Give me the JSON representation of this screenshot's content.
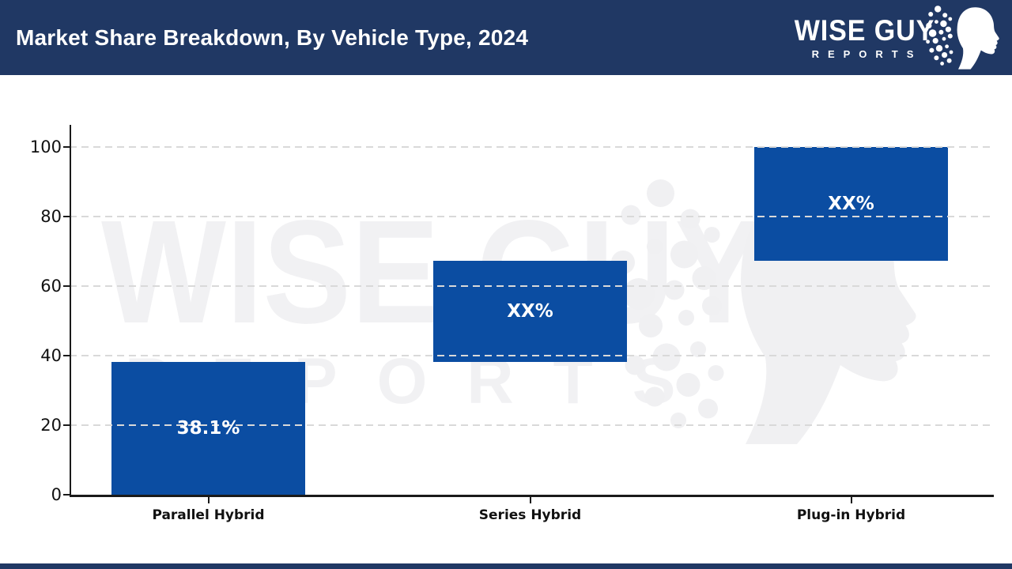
{
  "header": {
    "title": "Market Share Breakdown, By Vehicle Type, 2024",
    "logo": {
      "line1": "WISE GUY",
      "line2": "REPORTS"
    }
  },
  "watermark": {
    "line1": "WISE GUY",
    "line2": "REPORTS"
  },
  "chart_data": {
    "type": "bar",
    "subtype": "waterfall-cumulative",
    "title": "Market Share Breakdown, By Vehicle Type, 2024",
    "categories": [
      "Parallel Hybrid",
      "Series Hybrid",
      "Plug-in Hybrid"
    ],
    "segments": [
      {
        "category": "Parallel Hybrid",
        "start": 0,
        "end": 38.1,
        "label": "38.1%"
      },
      {
        "category": "Series Hybrid",
        "start": 38.1,
        "end": 67.3,
        "label": "XX%"
      },
      {
        "category": "Plug-in Hybrid",
        "start": 67.3,
        "end": 100,
        "label": "XX%"
      }
    ],
    "yticks": [
      0,
      20,
      40,
      60,
      80,
      100
    ],
    "ylim": [
      0,
      106
    ],
    "xlabel": "",
    "ylabel": "",
    "legend": "none",
    "grid": "horizontal-dashed"
  },
  "colors": {
    "header_bg": "#203864",
    "footer_bg": "#203864",
    "bar": "#0b4da2",
    "bar_label": "#ffffff",
    "watermark": "#f1f1f3",
    "gridline": "#d9d9d9",
    "axis": "#1a1a1a"
  }
}
